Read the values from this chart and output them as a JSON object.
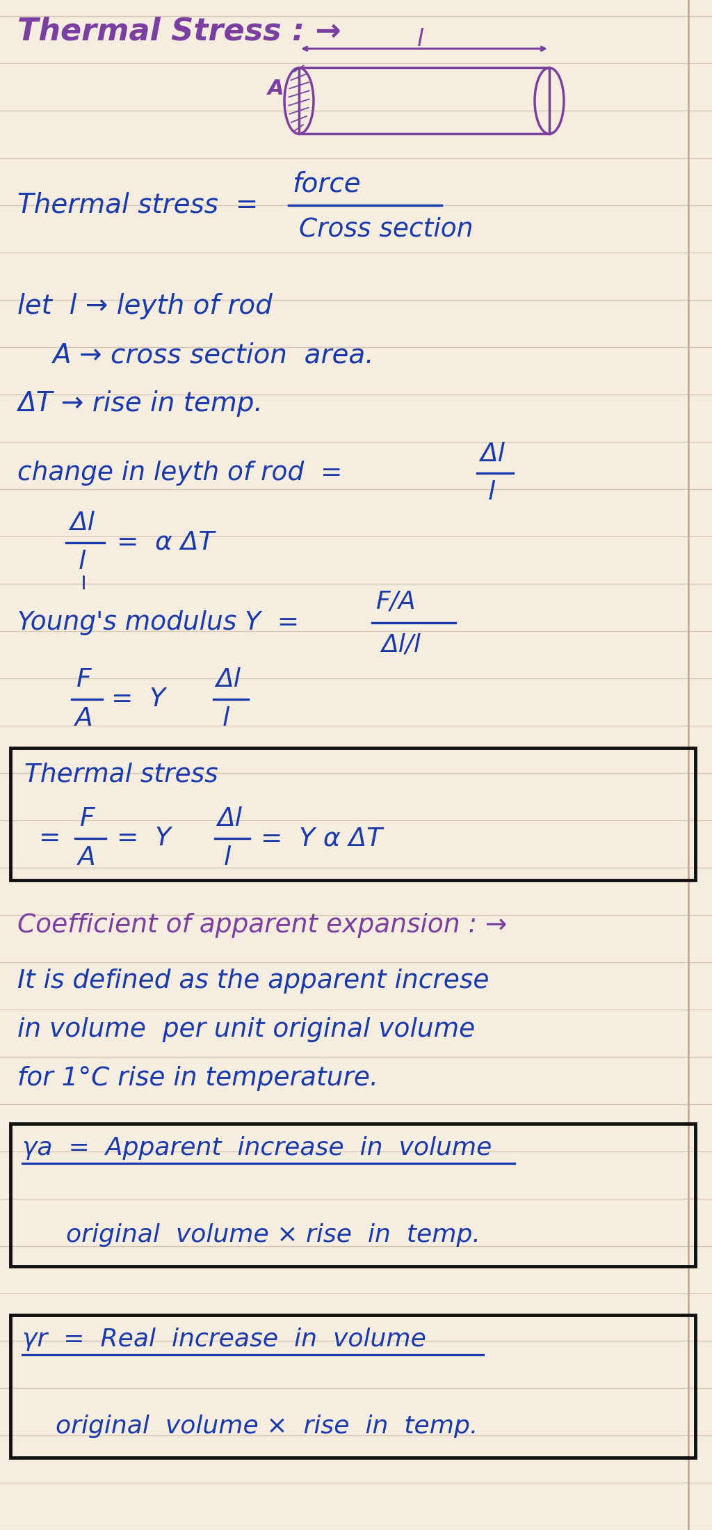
{
  "bg_color": "#f5ede0",
  "line_color": "#d4c4b0",
  "blue": "#1a3aab",
  "purple": "#7b3fa0",
  "black": "#111111",
  "fig_w": 10.24,
  "fig_h": 21.99,
  "dpi": 100
}
